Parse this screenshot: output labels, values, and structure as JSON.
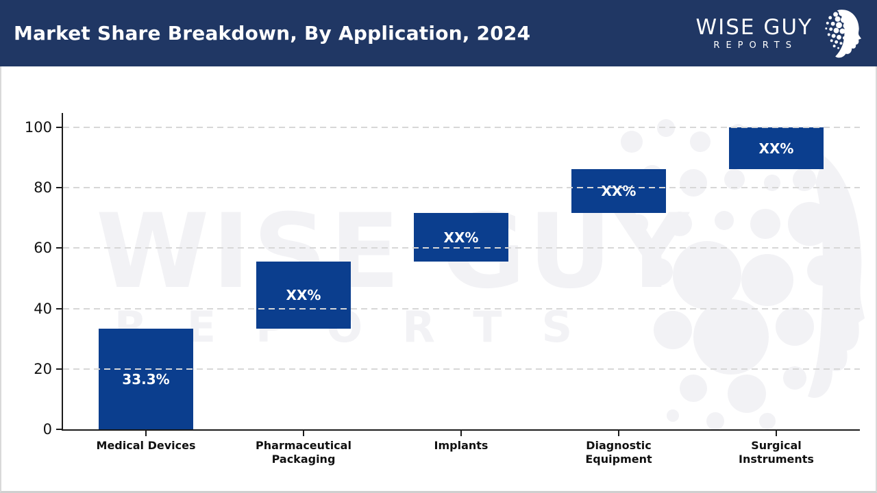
{
  "header": {
    "title": "Market Share Breakdown, By Application, 2024",
    "logo": {
      "name": "WISE GUY",
      "sub": "REPORTS"
    }
  },
  "watermark": {
    "name": "WISE GUY",
    "sub": "REPORTS"
  },
  "colors": {
    "header_bg": "#203764",
    "bar": "#0b3e8e",
    "bar_label_text": "#ffffff",
    "gridline": "#d7d7d7",
    "axis": "#1a1a1a",
    "watermark": "#f2f2f5"
  },
  "chart_data": {
    "type": "bar",
    "subtype": "waterfall",
    "title": "Market Share Breakdown, By Application, 2024",
    "categories": [
      "Medical Devices",
      "Pharmaceutical Packaging",
      "Implants",
      "Diagnostic Equipment",
      "Surgical Instruments"
    ],
    "category_label_lines": [
      [
        "Medical Devices"
      ],
      [
        "Pharmaceutical",
        "Packaging"
      ],
      [
        "Implants"
      ],
      [
        "Diagnostic",
        "Equipment"
      ],
      [
        "Surgical",
        "Instruments"
      ]
    ],
    "segments": [
      {
        "category": "Medical Devices",
        "start": 0,
        "end": 33.3,
        "label": "33.3%"
      },
      {
        "category": "Pharmaceutical Packaging",
        "start": 33.3,
        "end": 55.5,
        "label": "XX%"
      },
      {
        "category": "Implants",
        "start": 55.5,
        "end": 71.7,
        "label": "XX%"
      },
      {
        "category": "Diagnostic Equipment",
        "start": 71.7,
        "end": 86.1,
        "label": "XX%"
      },
      {
        "category": "Surgical Instruments",
        "start": 86.1,
        "end": 100,
        "label": "XX%"
      }
    ],
    "yticks": [
      0,
      20,
      40,
      60,
      80,
      100
    ],
    "ylim": [
      0,
      100
    ],
    "xlabel": "",
    "ylabel": "",
    "legend": "none",
    "grid": "horizontal-dashed"
  }
}
